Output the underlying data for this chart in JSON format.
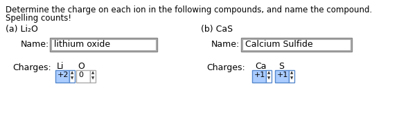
{
  "bg_color": "#ffffff",
  "title_line1": "Determine the charge on each ion in the following compounds, and name the compound.",
  "title_line2": "Spelling counts!",
  "left_label": "(a) Li₂O",
  "right_label": "(b) CaS",
  "name_label": "Name:",
  "charges_label": "Charges:",
  "left_name": "lithium oxide",
  "right_name": "Calcium Sulfide",
  "left_ions": [
    "Li",
    "O"
  ],
  "right_ions": [
    "Ca",
    "S"
  ],
  "left_charges": [
    "+2",
    "0"
  ],
  "right_charges": [
    "+1",
    "+1"
  ],
  "font_size_title": 8.5,
  "font_size_body": 9.0,
  "text_color": "#000000",
  "box_face": "#ffffff",
  "box_edge": "#aaaaaa",
  "box_edge2": "#888888",
  "spinbox_face": "#aaccff",
  "spinbox_edge": "#5588cc",
  "spinbox_face2": "#ffffff",
  "spinbox_edge2": "#aaaaaa"
}
